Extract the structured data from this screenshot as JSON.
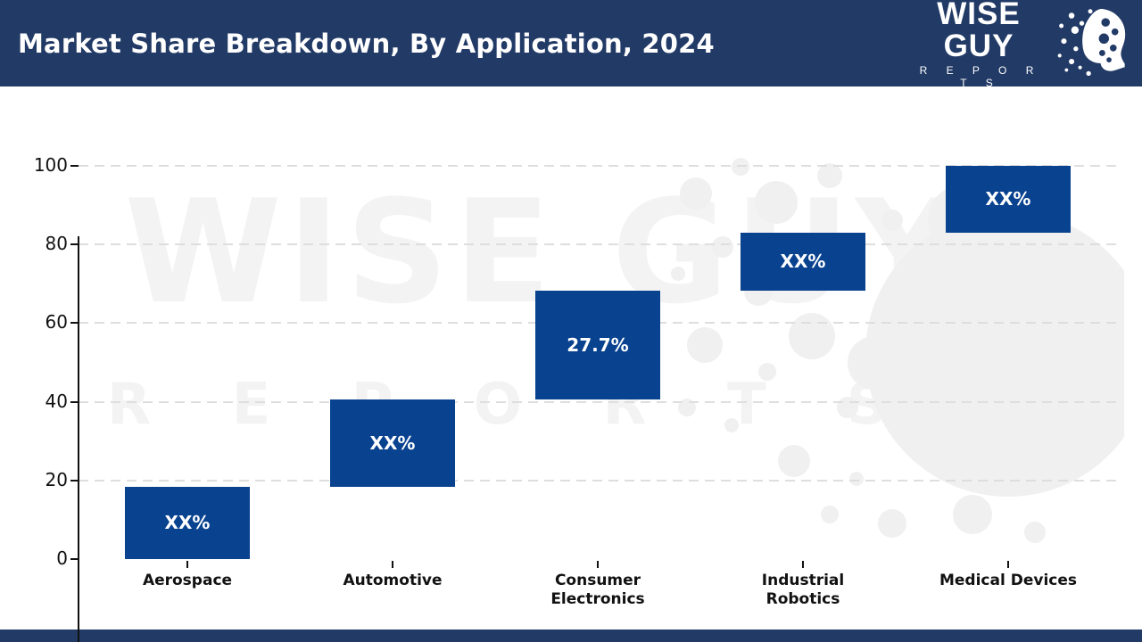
{
  "header": {
    "title": "Market Share Breakdown, By Application, 2024",
    "logo": {
      "name": "WISE GUY",
      "sub": "REPORTS"
    }
  },
  "watermark": {
    "line1": "WISE GUY",
    "line2": "REPORTS"
  },
  "chart_data": {
    "type": "bar",
    "subtype": "waterfall",
    "title": "Market Share Breakdown, By Application, 2024",
    "categories": [
      "Aerospace",
      "Automotive",
      "Consumer Electronics",
      "Industrial Robotics",
      "Medical Devices"
    ],
    "category_lines": [
      [
        "Aerospace"
      ],
      [
        "Automotive"
      ],
      [
        "Consumer",
        "Electronics"
      ],
      [
        "Industrial",
        "Robotics"
      ],
      [
        "Medical Devices"
      ]
    ],
    "series": [
      {
        "name": "Market share",
        "ranges": [
          [
            0,
            18.4
          ],
          [
            18.4,
            40.6
          ],
          [
            40.6,
            68.3
          ],
          [
            68.3,
            83.0
          ],
          [
            83.0,
            100
          ]
        ],
        "values": [
          18.4,
          22.2,
          27.7,
          14.7,
          17.0
        ],
        "labels": [
          "XX%",
          "XX%",
          "27.7%",
          "XX%",
          "XX%"
        ]
      }
    ],
    "ylim": [
      0,
      100
    ],
    "yticks": [
      0,
      20,
      40,
      60,
      80,
      100
    ],
    "xlabel": "",
    "ylabel": "",
    "grid": "horizontal-dashed",
    "legend": "none"
  },
  "colors": {
    "header_bg": "#223A66",
    "footer_bg": "#223A66",
    "bar": "#09428F",
    "bar_label": "#FFFFFF",
    "grid": "#DEDEDE",
    "axis": "#111111",
    "watermark": "#F3F3F3",
    "watermark_dots": "#F0F0F0",
    "page_bg": "#FFFFFF"
  }
}
